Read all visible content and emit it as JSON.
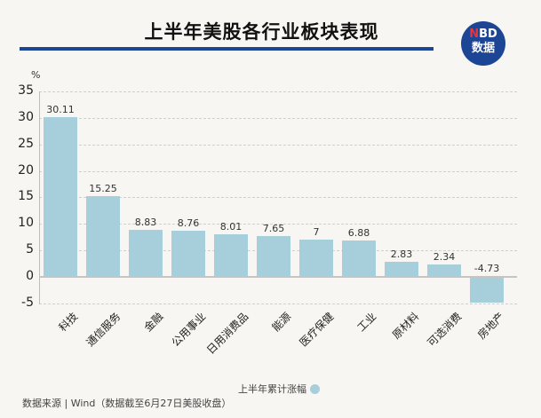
{
  "header": {
    "title": "上半年美股各行业板块表现",
    "logo": {
      "line1_accent": "N",
      "line1_rest": "BD",
      "line2": "数据"
    }
  },
  "colors": {
    "bar": "#a6cfdb",
    "brand": "#1d4596",
    "accent": "#e8343a",
    "background": "#f8f6f2"
  },
  "chart_data": {
    "type": "bar",
    "title": "上半年美股各行业板块表现",
    "xlabel": "",
    "ylabel": "%",
    "ylim": [
      -5,
      35
    ],
    "yticks": [
      35,
      30,
      25,
      20,
      15,
      10,
      5,
      0,
      -5
    ],
    "grid": true,
    "legend_position": "bottom",
    "categories": [
      "科技",
      "通信服务",
      "金融",
      "公用事业",
      "日用消费品",
      "能源",
      "医疗保健",
      "工业",
      "原材料",
      "可选消费",
      "房地产"
    ],
    "series": [
      {
        "name": "上半年累计涨幅",
        "values": [
          30.11,
          15.25,
          8.83,
          8.76,
          8.01,
          7.65,
          7,
          6.88,
          2.83,
          2.34,
          -4.73
        ]
      }
    ],
    "value_labels": [
      "30.11",
      "15.25",
      "8.83",
      "8.76",
      "8.01",
      "7.65",
      "7",
      "6.88",
      "2.83",
      "2.34",
      "-4.73"
    ]
  },
  "legend": {
    "label": "上半年累计涨幅"
  },
  "footer": {
    "source": "数据来源 | Wind（数据截至6月27日美股收盘）"
  }
}
